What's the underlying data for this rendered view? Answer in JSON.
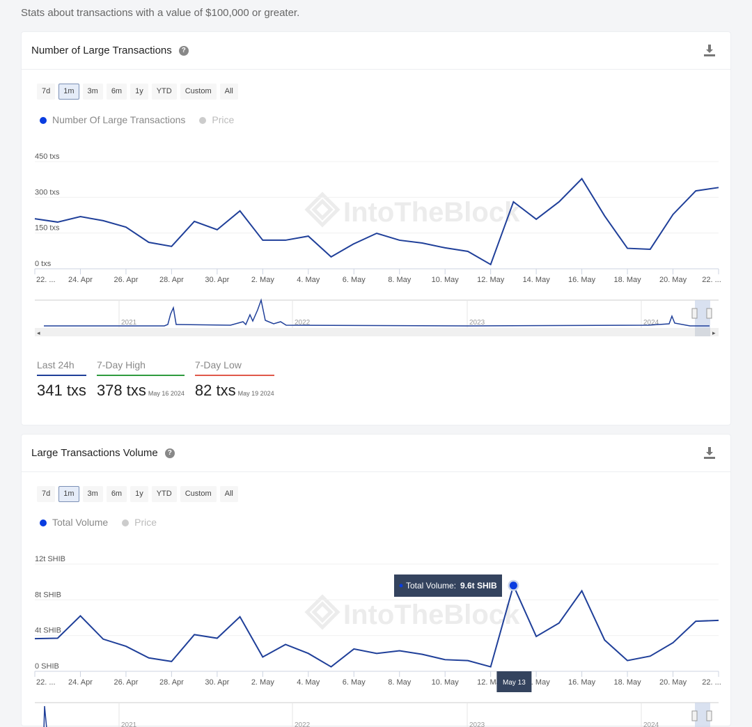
{
  "subtitle": "Stats about transactions with a value of $100,000 or greater.",
  "ranges": [
    "7d",
    "1m",
    "3m",
    "6m",
    "1y",
    "YTD",
    "Custom",
    "All"
  ],
  "active_range": "1m",
  "colors": {
    "line": "#1f3f99",
    "series_dot": "#0a3de0",
    "price_dot": "#cccccc",
    "last24": "#1f3f99",
    "high": "#2e9b3e",
    "low": "#e0584a",
    "tooltip_bg": "#34435e"
  },
  "x_labels": [
    "22. ...",
    "24. Apr",
    "26. Apr",
    "28. Apr",
    "30. Apr",
    "2. May",
    "4. May",
    "6. May",
    "8. May",
    "10. May",
    "12. May",
    "14. May",
    "16. May",
    "18. May",
    "20. May",
    "22. ..."
  ],
  "navigator_years": [
    "2021",
    "2022",
    "2023",
    "2024"
  ],
  "watermark": "IntoTheBlock",
  "card1": {
    "title": "Number of Large Transactions",
    "legend": {
      "series": "Number Of Large Transactions",
      "price": "Price"
    },
    "stats": {
      "last24": {
        "label": "Last 24h",
        "value": "341 txs"
      },
      "high": {
        "label": "7-Day High",
        "value": "378 txs",
        "date": "May 16 2024"
      },
      "low": {
        "label": "7-Day Low",
        "value": "82 txs",
        "date": "May 19 2024"
      }
    }
  },
  "card2": {
    "title": "Large Transactions Volume",
    "legend": {
      "series": "Total Volume",
      "price": "Price"
    },
    "tooltip": {
      "label": "Total Volume:",
      "value": "9.6t SHIB",
      "date": "May 13"
    }
  },
  "chart_data": [
    {
      "type": "line",
      "title": "Number of Large Transactions",
      "x": [
        "Apr 22",
        "Apr 23",
        "Apr 24",
        "Apr 25",
        "Apr 26",
        "Apr 27",
        "Apr 28",
        "Apr 29",
        "Apr 30",
        "May 1",
        "May 2",
        "May 3",
        "May 4",
        "May 5",
        "May 6",
        "May 7",
        "May 8",
        "May 9",
        "May 10",
        "May 11",
        "May 12",
        "May 13",
        "May 14",
        "May 15",
        "May 16",
        "May 17",
        "May 18",
        "May 19",
        "May 20",
        "May 21",
        "May 22"
      ],
      "series": [
        {
          "name": "Number Of Large Transactions",
          "values": [
            210,
            196,
            219,
            202,
            175,
            111,
            94,
            199,
            164,
            243,
            120,
            120,
            137,
            50,
            105,
            149,
            120,
            108,
            88,
            73,
            18,
            281,
            208,
            281,
            378,
            222,
            86,
            82,
            228,
            327,
            341
          ]
        }
      ],
      "yticks": [
        "0 txs",
        "150 txs",
        "300 txs",
        "450 txs"
      ],
      "ylim": [
        0,
        450
      ],
      "grid": true
    },
    {
      "type": "line",
      "title": "Large Transactions Volume",
      "x": [
        "Apr 22",
        "Apr 23",
        "Apr 24",
        "Apr 25",
        "Apr 26",
        "Apr 27",
        "Apr 28",
        "Apr 29",
        "Apr 30",
        "May 1",
        "May 2",
        "May 3",
        "May 4",
        "May 5",
        "May 6",
        "May 7",
        "May 8",
        "May 9",
        "May 10",
        "May 11",
        "May 12",
        "May 13",
        "May 14",
        "May 15",
        "May 16",
        "May 17",
        "May 18",
        "May 19",
        "May 20",
        "May 21",
        "May 22"
      ],
      "series": [
        {
          "name": "Total Volume",
          "values": [
            3.65,
            3.7,
            6.2,
            3.6,
            2.8,
            1.5,
            1.1,
            4.1,
            3.7,
            6.1,
            1.6,
            3.0,
            2.0,
            0.5,
            2.5,
            2.0,
            2.3,
            1.9,
            1.3,
            1.2,
            0.5,
            9.6,
            3.9,
            5.4,
            9.0,
            3.5,
            1.2,
            1.7,
            3.2,
            5.6,
            5.7
          ]
        }
      ],
      "yticks": [
        "0 SHIB",
        "4t SHIB",
        "8t SHIB",
        "12t SHIB"
      ],
      "ylim": [
        0,
        12
      ],
      "grid": true
    }
  ]
}
